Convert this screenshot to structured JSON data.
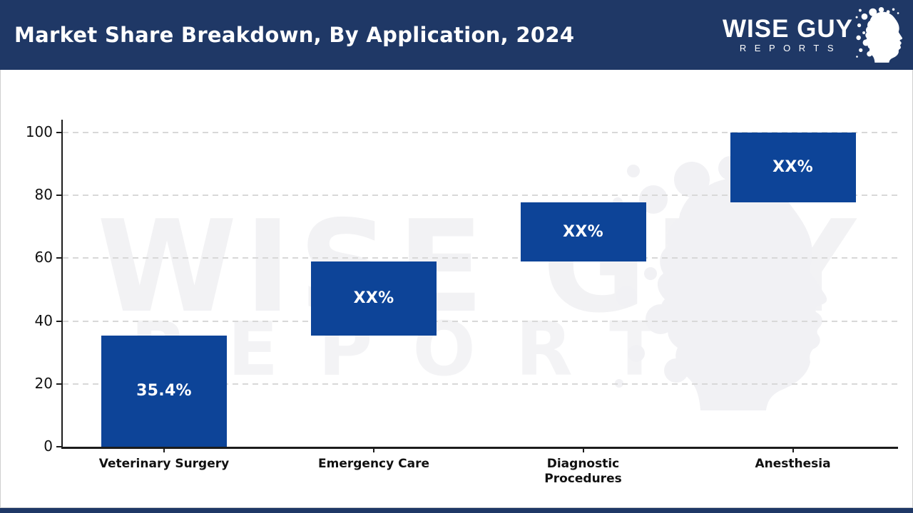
{
  "header": {
    "title": "Market Share Breakdown, By Application, 2024",
    "bg_color": "#1f3866",
    "logo": {
      "brand_line1": "WISE GUY",
      "brand_line2": "REPORTS"
    }
  },
  "watermark": {
    "line1": "WISE GUY",
    "line2": "REPORTS"
  },
  "chart_data": {
    "type": "bar",
    "variant": "waterfall",
    "title": "Market Share Breakdown, By Application, 2024",
    "categories": [
      "Veterinary Surgery",
      "Emergency Care",
      "Diagnostic\nProcedures",
      "Anesthesia"
    ],
    "segments": [
      {
        "category": "Veterinary Surgery",
        "start": 0,
        "end": 35.4,
        "label": "35.4%"
      },
      {
        "category": "Emergency Care",
        "start": 35.4,
        "end": 59.0,
        "label": "XX%"
      },
      {
        "category": "Diagnostic Procedures",
        "start": 59.0,
        "end": 77.8,
        "label": "XX%"
      },
      {
        "category": "Anesthesia",
        "start": 77.8,
        "end": 100,
        "label": "XX%"
      }
    ],
    "yticks": [
      0,
      20,
      40,
      60,
      80,
      100
    ],
    "ylim": [
      0,
      100
    ],
    "xlabel": "",
    "ylabel": "",
    "grid": "horizontal-dashed",
    "legend_position": "none",
    "bar_color": "#0d4498",
    "bar_label_color": "#ffffff",
    "axis_color": "#1c1c1c",
    "gridline_color": "#d8d8d8"
  }
}
